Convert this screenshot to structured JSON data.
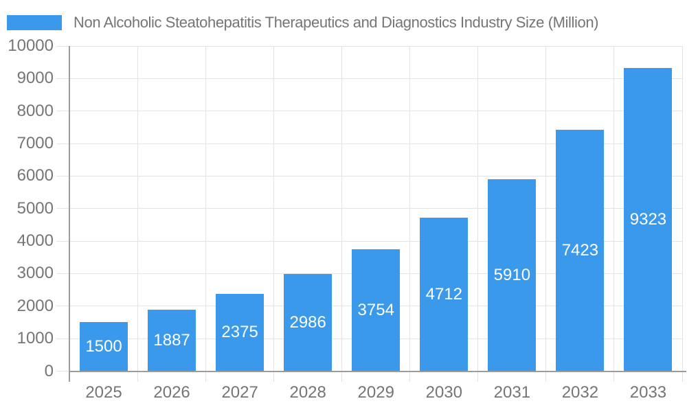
{
  "colors": {
    "bar": "#3B99EC",
    "grid": "#E3E3E3",
    "axis": "#9C9C9C",
    "text": "#757575",
    "value_text": "#FFFFFF",
    "background": "#FFFFFF"
  },
  "chart_data": {
    "type": "bar",
    "title": "Non Alcoholic Steatohepatitis Therapeutics and Diagnostics Industry Size (Million)",
    "categories": [
      "2025",
      "2026",
      "2027",
      "2028",
      "2029",
      "2030",
      "2031",
      "2032",
      "2033"
    ],
    "values": [
      1500,
      1887,
      2375,
      2986,
      3754,
      4712,
      5910,
      7423,
      9323
    ],
    "series": [
      {
        "name": "Non Alcoholic Steatohepatitis Therapeutics and Diagnostics Industry Size (Million)",
        "values": [
          1500,
          1887,
          2375,
          2986,
          3754,
          4712,
          5910,
          7423,
          9323
        ]
      }
    ],
    "xlabel": "",
    "ylabel": "",
    "ylim": [
      0,
      10000
    ],
    "yticks": [
      0,
      1000,
      2000,
      3000,
      4000,
      5000,
      6000,
      7000,
      8000,
      9000,
      10000
    ],
    "grid": true,
    "legend_position": "top-left",
    "value_label_position": "inside-center"
  }
}
